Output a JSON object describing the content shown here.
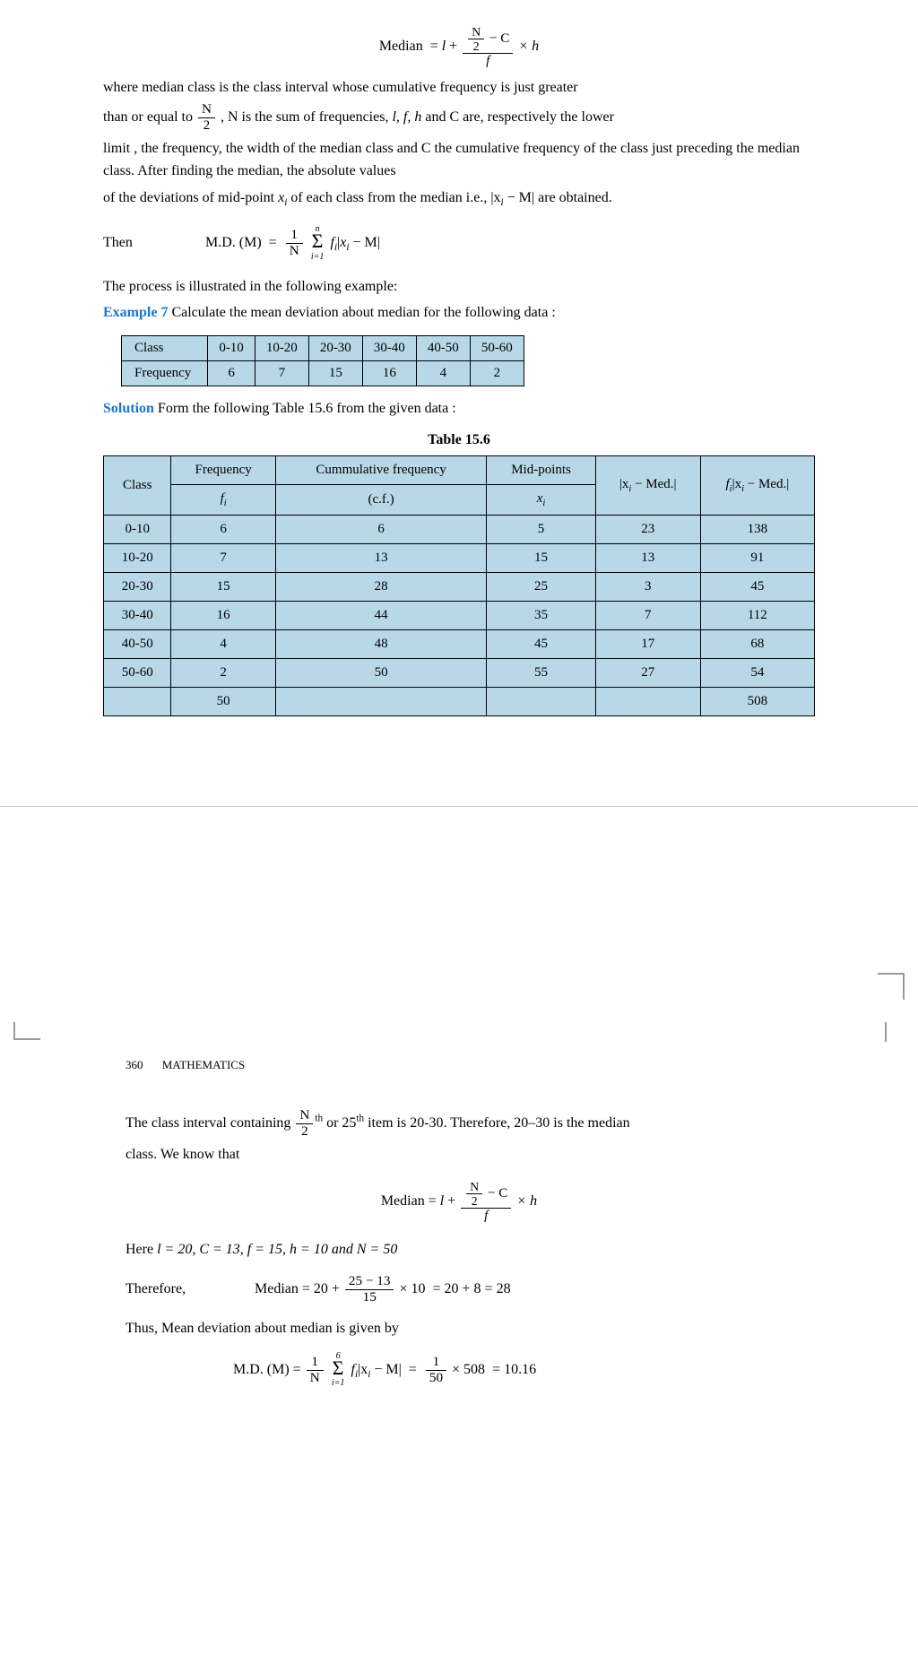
{
  "page1": {
    "median_formula_label": "Median",
    "median_formula_eq": "=",
    "median_formula_l": "l",
    "median_formula_plus": "+",
    "median_formula_num": "N",
    "median_formula_2": "2",
    "median_formula_c": "− C",
    "median_formula_f": "f",
    "median_formula_h": "× h",
    "para1a": "where median class is the class interval whose cumulative frequency is just greater",
    "para1b_pre": "than or equal to ",
    "para1b_post": " , N is the sum of frequencies, ",
    "para1b_vars": "l, f, h",
    "para1b_rest": " and C are, respectively the lower",
    "para1c": "limit , the frequency, the width of the median class and C the cumulative frequency of the class just preceding the median class. After finding the median, the absolute values",
    "para1d_pre": "of the deviations of mid-point ",
    "para1d_xi": "x",
    "para1d_i": "i",
    "para1d_mid": " of each class from the median i.e., ",
    "para1d_abs": "|x",
    "para1d_abs2": " − M|",
    "para1d_end": " are obtained.",
    "then": "Then",
    "md_label": "M.D. (M)",
    "md_eq": "=",
    "md_1": "1",
    "md_N": "N",
    "md_n": "n",
    "md_i1": "i=1",
    "md_term": "f",
    "md_xi": "x",
    "md_M": " −  M",
    "process": "The process is illustrated in the following example:",
    "example_label": "Example 7",
    "example_text": " Calculate the mean deviation about median for the following data :",
    "small_table": {
      "row_labels": [
        "Class",
        "Frequency"
      ],
      "cols": [
        "0-10",
        "10-20",
        "20-30",
        "30-40",
        "40-50",
        "50-60"
      ],
      "freq": [
        "6",
        "7",
        "15",
        "16",
        "4",
        "2"
      ]
    },
    "solution_label": "Solution",
    "solution_text": " Form the following Table 15.6 from the given data :",
    "table_caption": "Table 15.6",
    "big_table": {
      "headers": [
        "Class",
        "Frequency",
        "Cummulative frequency",
        "Mid-points",
        "|x",
        " − Med.|",
        "f",
        "|x",
        " − Med.|"
      ],
      "sub_f": "f",
      "sub_cf": "(c.f.)",
      "sub_x": "x",
      "rows": [
        [
          "0-10",
          "6",
          "6",
          "5",
          "23",
          "138"
        ],
        [
          "10-20",
          "7",
          "13",
          "15",
          "13",
          "91"
        ],
        [
          "20-30",
          "15",
          "28",
          "25",
          "3",
          "45"
        ],
        [
          "30-40",
          "16",
          "44",
          "35",
          "7",
          "112"
        ],
        [
          "40-50",
          "4",
          "48",
          "45",
          "17",
          "68"
        ],
        [
          "50-60",
          "2",
          "50",
          "55",
          "27",
          "54"
        ]
      ],
      "totals": [
        "",
        "50",
        "",
        "",
        "",
        "508"
      ]
    }
  },
  "page2": {
    "page_num": "360",
    "page_title": "MATHEMATICS",
    "p1_pre": "The class interval containing ",
    "p1_th": "th",
    "p1_mid": " or 25",
    "p1_th2": "th",
    "p1_post": " item is 20-30. Therefore, 20–30 is the median",
    "p2": "class. We know that",
    "p3_pre": "Here ",
    "p3": "l = 20, C = 13, f = 15, h = 10 and N = 50",
    "p4_label": "Therefore,",
    "p4_med": "Median",
    "p4_calc_num": "25 − 13",
    "p4_calc_den": "15",
    "p4_20": "= 20 +",
    "p4_10": "× 10",
    "p4_res": "= 20 + 8 = 28",
    "p5": "Thus, Mean deviation about median is given by",
    "p6_md": "M.D. (M)",
    "p6_eq": "=",
    "p6_1": "1",
    "p6_N": "N",
    "p6_top": "6",
    "p6_bot": "i=1",
    "p6_f": "f",
    "p6_abs": "|x",
    "p6_M": " − M|",
    "p6_eq2": "=",
    "p6_508": "× 508",
    "p6_50": "50",
    "p6_res": "= 10.16"
  }
}
